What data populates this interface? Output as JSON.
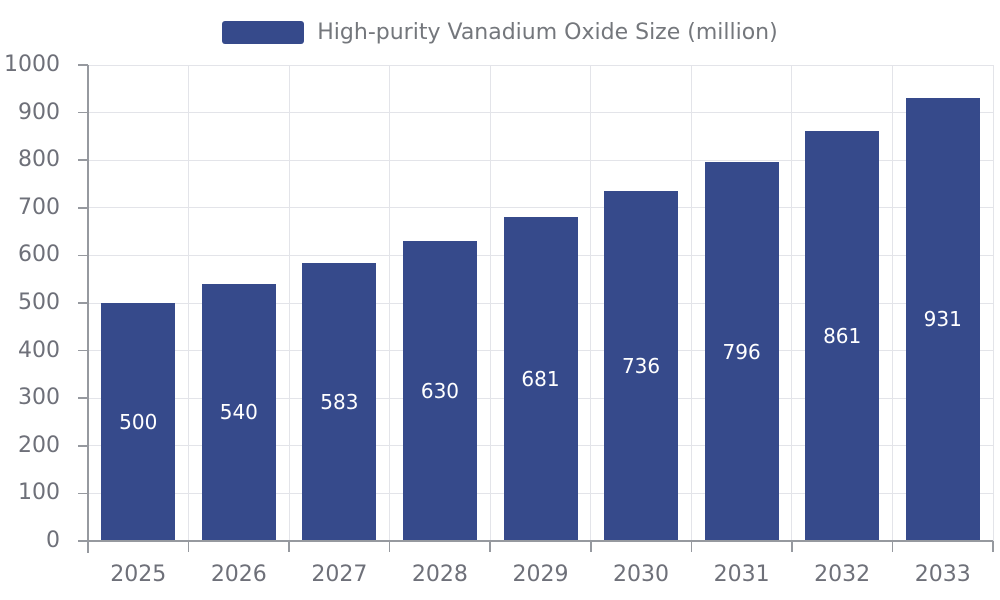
{
  "chart_data": {
    "type": "bar",
    "title": "High-purity Vanadium Oxide Size (million)",
    "categories": [
      "2025",
      "2026",
      "2027",
      "2028",
      "2029",
      "2030",
      "2031",
      "2032",
      "2033"
    ],
    "values": [
      500,
      540,
      583,
      630,
      681,
      736,
      796,
      861,
      931
    ],
    "series": [
      {
        "name": "High-purity Vanadium Oxide Size (million)",
        "values": [
          500,
          540,
          583,
          630,
          681,
          736,
          796,
          861,
          931
        ]
      }
    ],
    "xlabel": "",
    "ylabel": "",
    "ylim": [
      0,
      1000
    ],
    "ytick_step": 100,
    "grid": true,
    "legend_position": "top-center",
    "value_labels": "inside-center",
    "colors": {
      "bar": "#364a8b",
      "grid_line": "#e3e4e9",
      "axis_line": "#96999f",
      "axis_text": "#6e7079",
      "legend_text": "#74777c",
      "value_label_text": "#ffffff",
      "background": "#ffffff"
    }
  }
}
